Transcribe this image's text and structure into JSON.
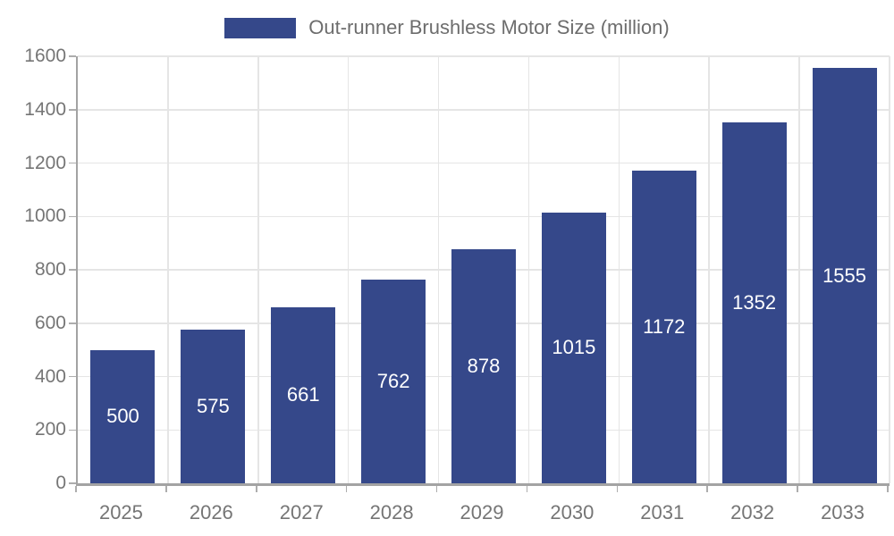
{
  "chart_data": {
    "type": "bar",
    "title": "",
    "legend": {
      "label": "Out-runner Brushless Motor Size (million)",
      "position": "top"
    },
    "categories": [
      "2025",
      "2026",
      "2027",
      "2028",
      "2029",
      "2030",
      "2031",
      "2032",
      "2033"
    ],
    "series": [
      {
        "name": "Out-runner Brushless Motor Size (million)",
        "values": [
          500,
          575,
          661,
          762,
          878,
          1015,
          1172,
          1352,
          1555
        ]
      }
    ],
    "xlabel": "",
    "ylabel": "",
    "ylim": [
      0,
      1600
    ],
    "yticks": [
      0,
      200,
      400,
      600,
      800,
      1000,
      1200,
      1400,
      1600
    ],
    "grid": true,
    "colors": {
      "bar": "#35488a",
      "value_label": "#ffffff",
      "axis_line": "#a3a3a3",
      "gridline": "#e5e5e5",
      "tick_label": "#757575",
      "legend_text": "#6d6d6d",
      "background": "#ffffff"
    }
  }
}
